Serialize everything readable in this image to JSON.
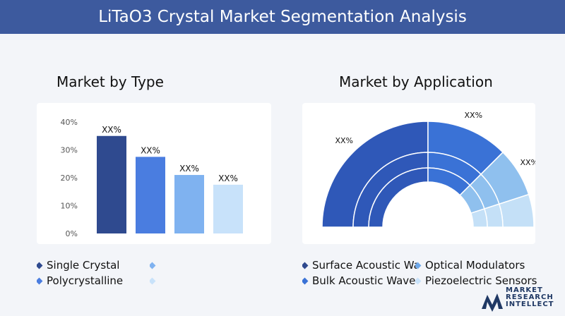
{
  "header": {
    "title": "LiTaO3 Crystal Market Segmentation Analysis"
  },
  "sections": {
    "type_title": "Market by Type",
    "application_title": "Market by Application"
  },
  "chart_data": [
    {
      "type": "bar",
      "title": "Market by Type",
      "categories": [
        "Single Crystal",
        "Polycrystalline",
        "",
        ""
      ],
      "values": [
        35,
        27.5,
        21,
        17.5
      ],
      "data_labels": [
        "XX%",
        "XX%",
        "XX%",
        "XX%"
      ],
      "yticks": [
        "0%",
        "10%",
        "20%",
        "30%",
        "40%"
      ],
      "ylim": [
        0,
        40
      ],
      "grid": false,
      "colors": [
        "#2f4a8f",
        "#4a7de0",
        "#7fb2f0",
        "#c8e2fa"
      ]
    },
    {
      "type": "pie",
      "subtype": "semi-donut",
      "title": "Market by Application",
      "categories": [
        "Surface Acoustic Wave",
        "Bulk Acoustic Wave (BAW)",
        "Optical Modulators",
        "Piezoelectric Sensors"
      ],
      "values": [
        50,
        25,
        15,
        10
      ],
      "data_labels": [
        "XX%",
        "XX%",
        "XX%",
        "XX%"
      ],
      "colors": [
        "#2f58b8",
        "#3a72d6",
        "#8fc0ee",
        "#c4e0f7"
      ]
    }
  ],
  "legend_type": [
    {
      "label": "Single Crystal",
      "color": "#2f4a8f"
    },
    {
      "label": "",
      "color": "#7fb2f0"
    },
    {
      "label": "Polycrystalline",
      "color": "#4a7de0"
    },
    {
      "label": "",
      "color": "#c8e2fa"
    }
  ],
  "legend_application": [
    {
      "label": "Surface Acoustic Wave",
      "color": "#2f4a8f"
    },
    {
      "label": "Optical Modulators",
      "color": "#6fa8e8"
    },
    {
      "label": "Bulk Acoustic Wave (BAW)",
      "color": "#3a72d6"
    },
    {
      "label": "Piezoelectric Sensors",
      "color": "#c8e2fa"
    }
  ],
  "logo": {
    "line1": "MARKET",
    "line2": "RESEARCH",
    "line3": "INTELLECT",
    "colors": [
      "#1f3864",
      "#4a7de0"
    ]
  }
}
